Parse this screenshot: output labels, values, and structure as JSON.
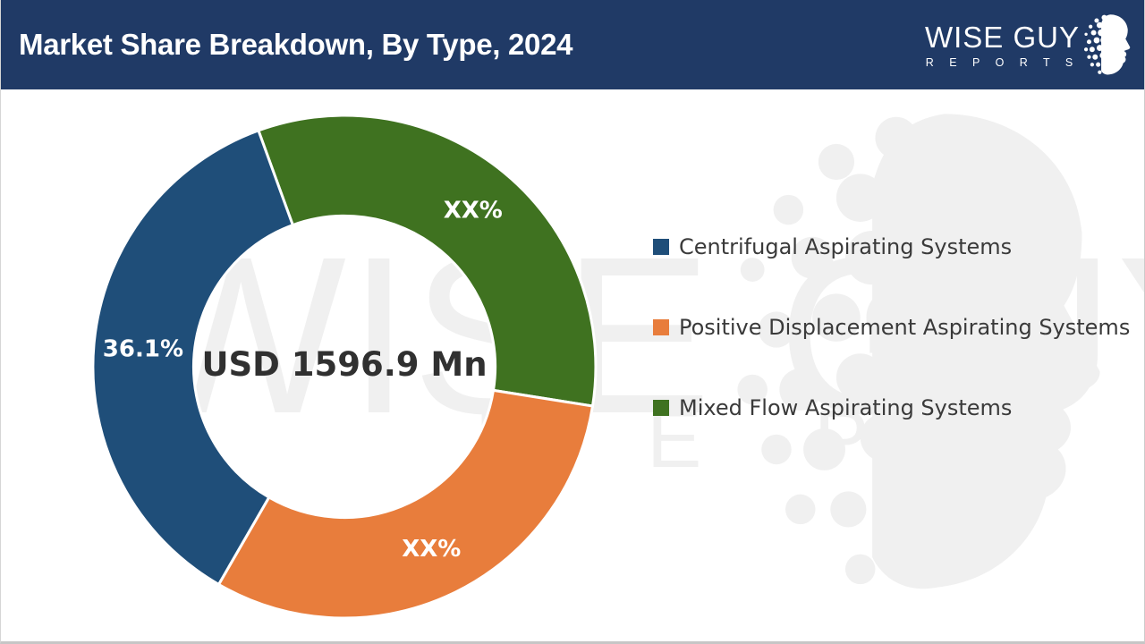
{
  "header": {
    "title": "Market Share Breakdown, By Type, 2024",
    "logo": {
      "line1": "WISE GUY",
      "line2": "R E P O R T S"
    }
  },
  "watermark": {
    "line1": "WISE GUY",
    "line2": "R E P O R T S"
  },
  "chart_data": {
    "type": "pie",
    "subtype": "donut",
    "title": "Market Share Breakdown, By Type, 2024",
    "center_label": "USD 1596.9 Mn",
    "start_angle_deg": -20,
    "clockwise": true,
    "inner_radius_ratio": 0.6,
    "legend_position": "right",
    "segments": [
      {
        "name": "Mixed Flow Aspirating Systems",
        "color": "#3F7220",
        "label": "XX%",
        "sweep_deg": 119,
        "share_pct_est": 33.1
      },
      {
        "name": "Positive Displacement Aspirating Systems",
        "color": "#E87D3C",
        "label": "XX%",
        "sweep_deg": 111,
        "share_pct_est": 30.8
      },
      {
        "name": "Centrifugal Aspirating Systems",
        "color": "#1F4E79",
        "label": "36.1%",
        "sweep_deg": 130,
        "share_pct_est": 36.1
      }
    ]
  },
  "legend": {
    "items": [
      {
        "label": "Centrifugal Aspirating Systems",
        "color": "#1F4E79"
      },
      {
        "label": "Positive Displacement Aspirating Systems",
        "color": "#E87D3C"
      },
      {
        "label": "Mixed Flow Aspirating Systems",
        "color": "#3F7220"
      }
    ]
  },
  "colors": {
    "header_bg": "#203A66",
    "page_bg": "#FFFFFF",
    "blue": "#1F4E79",
    "orange": "#E87D3C",
    "green": "#3F7220",
    "legend_text": "#3A3A3A",
    "center_text": "#303030",
    "watermark": "#F0F0F0"
  }
}
